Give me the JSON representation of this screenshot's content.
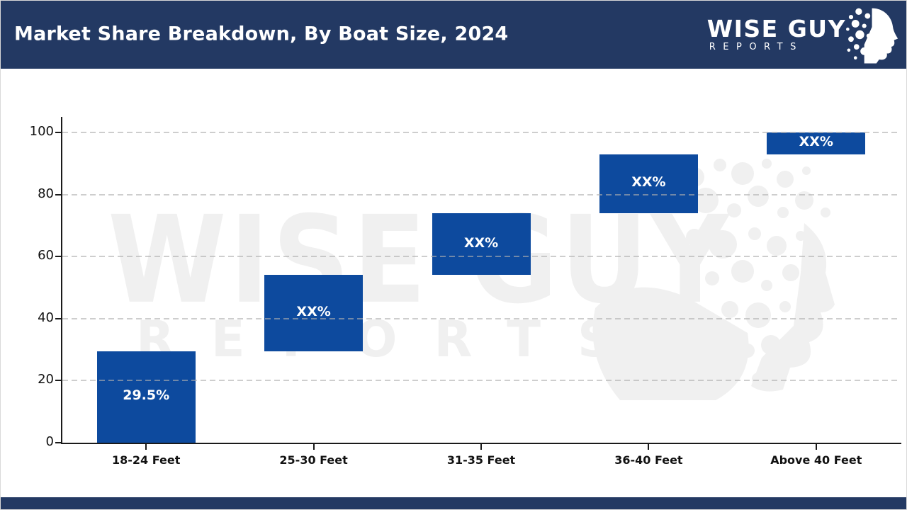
{
  "header": {
    "title": "Market Share Breakdown, By Boat Size, 2024",
    "background": "#233963",
    "logo": {
      "name": "WISE GUY",
      "subtitle": "REPORTS"
    }
  },
  "watermark": {
    "name": "WISE GUY",
    "subtitle": "REPORTS"
  },
  "chart_data": {
    "type": "bar",
    "variant": "floating-waterfall",
    "title": "Market Share Breakdown, By Boat Size, 2024",
    "categories": [
      "18-24 Feet",
      "25-30 Feet",
      "31-35 Feet",
      "36-40 Feet",
      "Above 40 Feet"
    ],
    "segments": [
      {
        "category": "18-24 Feet",
        "start": 0,
        "end": 29.5,
        "label": "29.5%"
      },
      {
        "category": "25-30 Feet",
        "start": 29.5,
        "end": 54,
        "label": "XX%"
      },
      {
        "category": "31-35 Feet",
        "start": 54,
        "end": 74,
        "label": "XX%"
      },
      {
        "category": "36-40 Feet",
        "start": 74,
        "end": 93,
        "label": "XX%"
      },
      {
        "category": "Above 40 Feet",
        "start": 93,
        "end": 100,
        "label": "XX%"
      }
    ],
    "yticks": [
      0,
      20,
      40,
      60,
      80,
      100
    ],
    "ylim": [
      0,
      105
    ],
    "xlabel": "",
    "ylabel": "",
    "grid": true,
    "grid_style": "dashed-horizontal-over-bars",
    "legend": false,
    "bar_color": "#0d4a9e",
    "bar_label_color": "#ffffff",
    "axis_color": "#1a1a1a"
  },
  "footer": {
    "background": "#233963"
  }
}
